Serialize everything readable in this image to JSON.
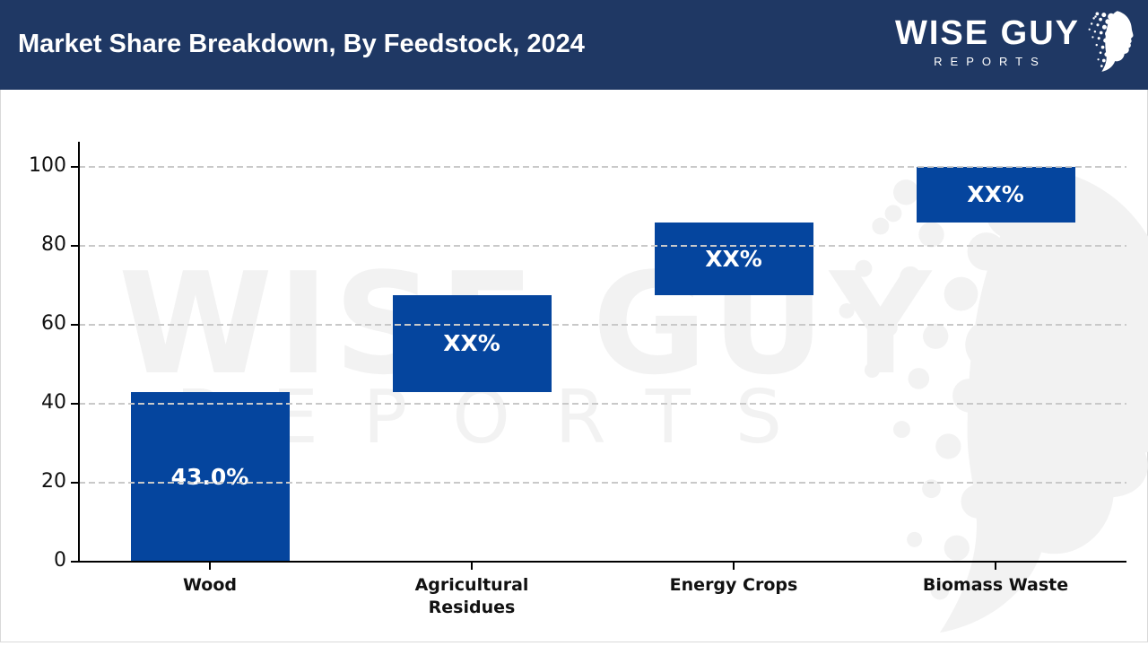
{
  "header": {
    "title": "Market Share Breakdown, By Feedstock, 2024",
    "logo": {
      "line1": "WISE GUY",
      "line2": "REPORTS"
    }
  },
  "watermark": {
    "line1": "WISE GUY",
    "line2": "REPORTS"
  },
  "chart_data": {
    "type": "bar",
    "subtype": "waterfall",
    "title": "Market Share Breakdown, By Feedstock, 2024",
    "categories": [
      "Wood",
      "Agricultural\nResidues",
      "Energy Crops",
      "Biomass Waste"
    ],
    "segments": [
      {
        "category": "Wood",
        "start": 0,
        "end": 43,
        "value": 43.0,
        "label": "43.0%"
      },
      {
        "category": "Agricultural\nResidues",
        "start": 43,
        "end": 67.5,
        "value": 24.5,
        "label": "XX%"
      },
      {
        "category": "Energy Crops",
        "start": 67.5,
        "end": 86,
        "value": 18.5,
        "label": "XX%"
      },
      {
        "category": "Biomass Waste",
        "start": 86,
        "end": 100,
        "value": 14.0,
        "label": "XX%"
      }
    ],
    "yticks": [
      0,
      20,
      40,
      60,
      80,
      100
    ],
    "ylim": [
      0,
      106
    ],
    "xlabel": "",
    "ylabel": "",
    "grid": "horizontal-dashed-over-bars",
    "legend": "none"
  },
  "colors": {
    "header_bg": "#1f3864",
    "bar": "#05459e",
    "grid": "#c9c9c9",
    "axis": "#000000",
    "title_text": "#ffffff",
    "watermark": "#f2f2f2",
    "frame_border": "#d9d9d9"
  }
}
